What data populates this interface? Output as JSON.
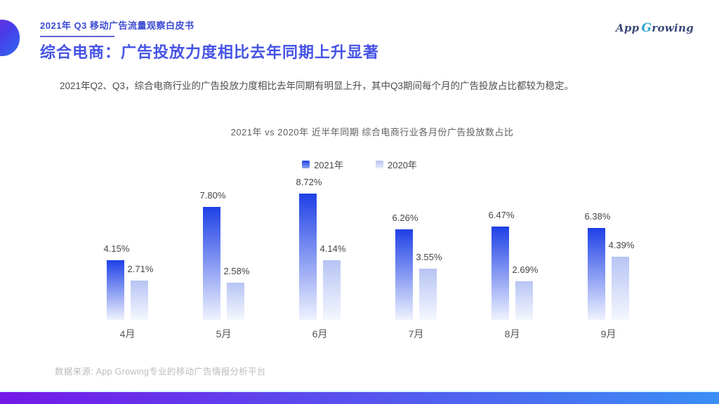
{
  "page": {
    "eyebrow": "2021年 Q3 移动广告流量观察白皮书",
    "title": "综合电商：广告投放力度相比去年同期上升显著",
    "subtitle": "2021年Q2、Q3，综合电商行业的广告投放力度相比去年同期有明显上升，其中Q3期间每个月的广告投放占比都较为稳定。",
    "source": "数据来源: App Growing专业的移动广告情报分析平台",
    "logo": {
      "part1": "App",
      "g": "G",
      "part2": "rowing"
    }
  },
  "colors": {
    "eyebrow_blue": "#3c4ad2",
    "title_blue": "#4553e6",
    "bar2021_top": "#1e40e6",
    "bar2021_bottom": "#eef2fe",
    "bar2020_top": "#b7c4f4",
    "bar2020_bottom": "#f4f7fe",
    "bottom_bar_left": "#7418e8",
    "bottom_bar_right": "#3a8ef5",
    "logo_navy": "#3a4878",
    "logo_teal": "#2fa8cc"
  },
  "chart_data": {
    "type": "bar",
    "title": "2021年 vs 2020年 近半年同期 综合电商行业各月份广告投放数占比",
    "categories": [
      "4月",
      "5月",
      "6月",
      "7月",
      "8月",
      "9月"
    ],
    "series": [
      {
        "name": "2021年",
        "values": [
          4.15,
          7.8,
          8.72,
          6.26,
          6.47,
          6.38
        ]
      },
      {
        "name": "2020年",
        "values": [
          2.71,
          2.58,
          4.14,
          3.55,
          2.69,
          4.39
        ]
      }
    ],
    "unit": "%",
    "ylim": [
      0,
      9.2
    ],
    "grid": false,
    "legend_position": "top-center",
    "value_labels_visible": true
  }
}
